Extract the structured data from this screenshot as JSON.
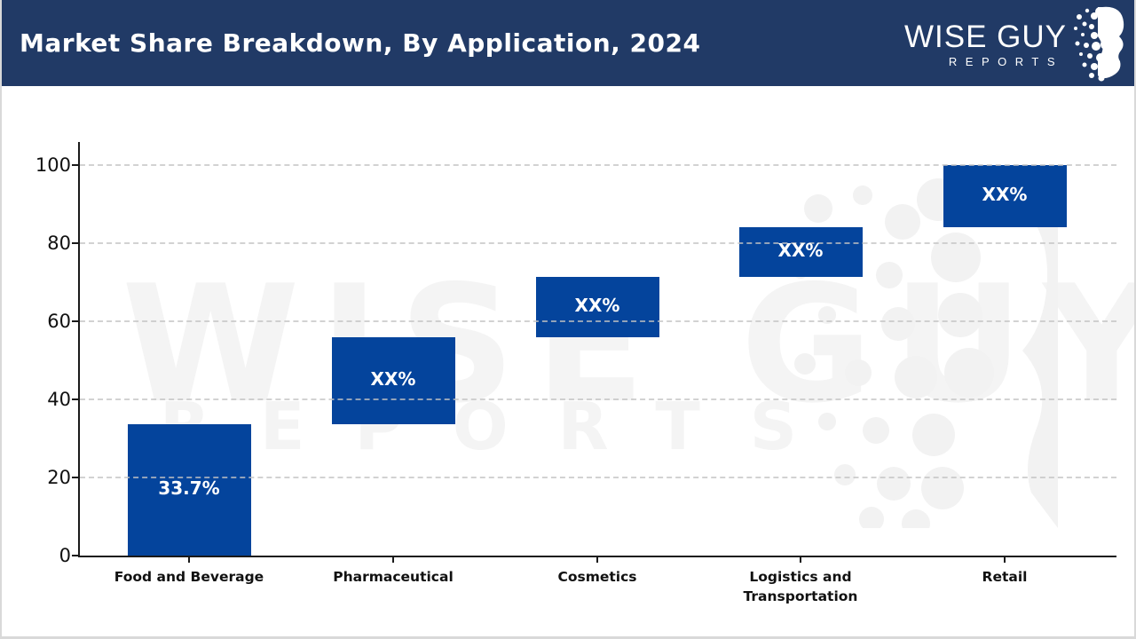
{
  "header": {
    "title": "Market Share Breakdown, By Application, 2024",
    "bg_color": "#213a66",
    "logo": {
      "line1": "WISE GUY",
      "line2": "REPORTS",
      "mark": "dotted-face-profile-icon"
    }
  },
  "watermark": {
    "line1": "WISE GUY",
    "line2": "REPORTS"
  },
  "chart_data": {
    "type": "bar",
    "subtype": "waterfall",
    "title": "Market Share Breakdown, By Application, 2024",
    "categories": [
      "Food and Beverage",
      "Pharmaceutical",
      "Cosmetics",
      "Logistics and Transportation",
      "Retail"
    ],
    "bars": [
      {
        "category": "Food and Beverage",
        "start": 0,
        "end": 33.7,
        "value": 33.7,
        "label": "33.7%"
      },
      {
        "category": "Pharmaceutical",
        "start": 33.7,
        "end": 56.0,
        "value": 22.3,
        "label": "XX%"
      },
      {
        "category": "Cosmetics",
        "start": 56.0,
        "end": 71.4,
        "value": 15.4,
        "label": "XX%"
      },
      {
        "category": "Logistics and Transportation",
        "start": 71.4,
        "end": 84.2,
        "value": 12.8,
        "label": "XX%"
      },
      {
        "category": "Retail",
        "start": 84.2,
        "end": 100,
        "value": 15.8,
        "label": "XX%"
      }
    ],
    "yticks": [
      0,
      20,
      40,
      60,
      80,
      100
    ],
    "ylim": [
      0,
      105
    ],
    "xlabel": "",
    "ylabel": "",
    "grid": "horizontal-dashed",
    "legend": "none",
    "bar_color": "#04449c",
    "label_color": "#ffffff"
  }
}
